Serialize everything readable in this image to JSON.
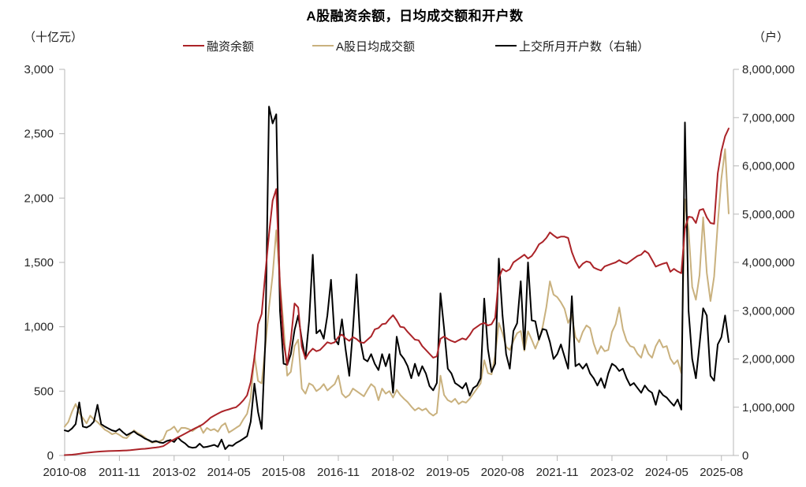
{
  "title": "A股融资余额，日均成交额和开户数",
  "chart_data": {
    "type": "line",
    "title": "A股融资余额，日均成交额和开户数",
    "x_tick_labels": [
      "2010-08",
      "2011-11",
      "2013-02",
      "2014-05",
      "2015-08",
      "2016-11",
      "2018-02",
      "2019-05",
      "2020-08",
      "2021-11",
      "2023-02",
      "2024-05",
      "2025-08"
    ],
    "x_tick_interval_months": 15,
    "grid": "off",
    "legend_position": "top",
    "left_axis": {
      "unit": "（十亿元）",
      "min": 0,
      "max": 3000,
      "step": 500,
      "tick_labels": [
        "0",
        "500",
        "1,000",
        "1,500",
        "2,000",
        "2,500",
        "3,000"
      ]
    },
    "right_axis": {
      "unit": "（户）",
      "min": 0,
      "max": 8000000,
      "step": 1000000,
      "tick_labels": [
        "0",
        "1,000,000",
        "2,000,000",
        "3,000,000",
        "4,000,000",
        "5,000,000",
        "6,000,000",
        "7,000,000",
        "8,000,000"
      ]
    },
    "series": [
      {
        "name": "融资余额",
        "axis": "left",
        "color": "#ab2328",
        "values": [
          3,
          4,
          6,
          9,
          13,
          18,
          21,
          24,
          27,
          29,
          31,
          33,
          34,
          35,
          36,
          37,
          38,
          39,
          41,
          44,
          47,
          50,
          52,
          55,
          59,
          62,
          66,
          72,
          90,
          110,
          125,
          140,
          155,
          170,
          185,
          200,
          215,
          228,
          245,
          268,
          294,
          310,
          325,
          340,
          350,
          358,
          368,
          375,
          400,
          430,
          467,
          570,
          760,
          1020,
          1100,
          1420,
          1720,
          1980,
          2070,
          1320,
          880,
          704,
          900,
          1181,
          1150,
          845,
          753,
          800,
          830,
          810,
          820,
          850,
          880,
          870,
          880,
          920,
          940,
          910,
          890,
          920,
          905,
          880,
          875,
          900,
          925,
          980,
          990,
          1020,
          1025,
          1060,
          1090,
          1050,
          1000,
          995,
          960,
          930,
          900,
          895,
          850,
          820,
          790,
          760,
          770,
          906,
          925,
          905,
          890,
          880,
          895,
          910,
          900,
          935,
          980,
          1000,
          1020,
          1030,
          1010,
          1020,
          1070,
          1380,
          1450,
          1430,
          1447,
          1500,
          1520,
          1540,
          1560,
          1530,
          1550,
          1590,
          1640,
          1660,
          1690,
          1733,
          1710,
          1690,
          1700,
          1700,
          1690,
          1580,
          1508,
          1457,
          1490,
          1508,
          1500,
          1460,
          1447,
          1437,
          1469,
          1480,
          1490,
          1500,
          1518,
          1500,
          1490,
          1510,
          1530,
          1550,
          1560,
          1590,
          1570,
          1520,
          1467,
          1480,
          1490,
          1498,
          1427,
          1450,
          1430,
          1416,
          1763,
          1855,
          1850,
          1806,
          1906,
          1915,
          1850,
          1806,
          1800,
          2192,
          2365,
          2480,
          2541
        ]
      },
      {
        "name": "A股日均成交额",
        "axis": "left",
        "color": "#c9b17e",
        "values": [
          225,
          260,
          340,
          400,
          330,
          290,
          250,
          310,
          280,
          260,
          230,
          200,
          185,
          165,
          175,
          160,
          140,
          135,
          165,
          195,
          175,
          160,
          140,
          115,
          100,
          105,
          110,
          125,
          190,
          202,
          225,
          180,
          215,
          214,
          205,
          190,
          210,
          233,
          175,
          214,
          195,
          205,
          185,
          230,
          251,
          178,
          196,
          215,
          233,
          282,
          324,
          447,
          780,
          580,
          560,
          850,
          1150,
          1400,
          1750,
          1350,
          1000,
          620,
          650,
          850,
          900,
          520,
          480,
          560,
          545,
          500,
          520,
          555,
          505,
          530,
          555,
          620,
          480,
          450,
          470,
          520,
          500,
          480,
          460,
          510,
          555,
          530,
          430,
          520,
          480,
          500,
          450,
          510,
          470,
          440,
          415,
          380,
          350,
          370,
          350,
          365,
          330,
          310,
          330,
          620,
          470,
          430,
          415,
          440,
          400,
          420,
          410,
          440,
          480,
          520,
          560,
          740,
          640,
          630,
          780,
          1030,
          950,
          845,
          820,
          890,
          950,
          967,
          815,
          965,
          900,
          830,
          900,
          1000,
          1150,
          1353,
          1250,
          1230,
          1190,
          1140,
          1030,
          1090,
          920,
          880,
          960,
          1010,
          990,
          870,
          790,
          850,
          810,
          820,
          960,
          1020,
          1150,
          980,
          890,
          850,
          840,
          790,
          760,
          860,
          790,
          760,
          850,
          900,
          840,
          850,
          753,
          710,
          740,
          640,
          1990,
          1750,
          1310,
          1210,
          1400,
          1850,
          1420,
          1200,
          1390,
          1800,
          2150,
          2380,
          1880
        ]
      },
      {
        "name": "上交所月开户数（右轴）",
        "axis": "right",
        "color": "#000000",
        "values": [
          520000,
          500000,
          560000,
          650000,
          1100000,
          600000,
          580000,
          620000,
          700000,
          1050000,
          650000,
          600000,
          560000,
          520000,
          500000,
          550000,
          480000,
          420000,
          460000,
          500000,
          440000,
          400000,
          350000,
          320000,
          280000,
          300000,
          270000,
          260000,
          300000,
          320000,
          280000,
          375000,
          300000,
          250000,
          180000,
          160000,
          170000,
          245000,
          170000,
          180000,
          200000,
          220000,
          180000,
          330000,
          130000,
          210000,
          200000,
          260000,
          300000,
          350000,
          400000,
          700000,
          1490000,
          900000,
          550000,
          2400000,
          7230000,
          6880000,
          7070000,
          3000000,
          1900000,
          1880000,
          2100000,
          2600000,
          2900000,
          2400000,
          2000000,
          2800000,
          4160000,
          2530000,
          2600000,
          2420000,
          2900000,
          3640000,
          2420000,
          2300000,
          2820000,
          2200000,
          1650000,
          2600000,
          3750000,
          2400000,
          2000000,
          1950000,
          2100000,
          1900000,
          1770000,
          2100000,
          1850000,
          2100000,
          1300000,
          2460000,
          2100000,
          2000000,
          1850000,
          1600000,
          1900000,
          1650000,
          1850000,
          1700000,
          1440000,
          1350000,
          1500000,
          3360000,
          2630000,
          1800000,
          1700000,
          1500000,
          1450000,
          1390000,
          1500000,
          1240000,
          1400000,
          1450000,
          1600000,
          3250000,
          2200000,
          1730000,
          1900000,
          4080000,
          2900000,
          2100000,
          1800000,
          2580000,
          2740000,
          3610000,
          2200000,
          4000000,
          2800000,
          2780000,
          2400000,
          2620000,
          2600000,
          2350000,
          2000000,
          2100000,
          2300000,
          2050000,
          1800000,
          3300000,
          1850000,
          1900000,
          1800000,
          1900000,
          1700000,
          1600000,
          1450000,
          1600000,
          1400000,
          1700000,
          1900000,
          1850000,
          1750000,
          1800000,
          1600000,
          1450000,
          1500000,
          1400000,
          1300000,
          1450000,
          1350000,
          1300000,
          1050000,
          1350000,
          1250000,
          1200000,
          1110000,
          1030000,
          1160000,
          950000,
          6900000,
          3000000,
          2000000,
          1600000,
          2300000,
          3050000,
          2900000,
          1650000,
          1550000,
          2300000,
          2450000,
          2900000,
          2350000
        ]
      }
    ],
    "style": {
      "axis_color": "#b7b7b7",
      "tick_label_color": "#262626",
      "line_width": 2
    }
  }
}
